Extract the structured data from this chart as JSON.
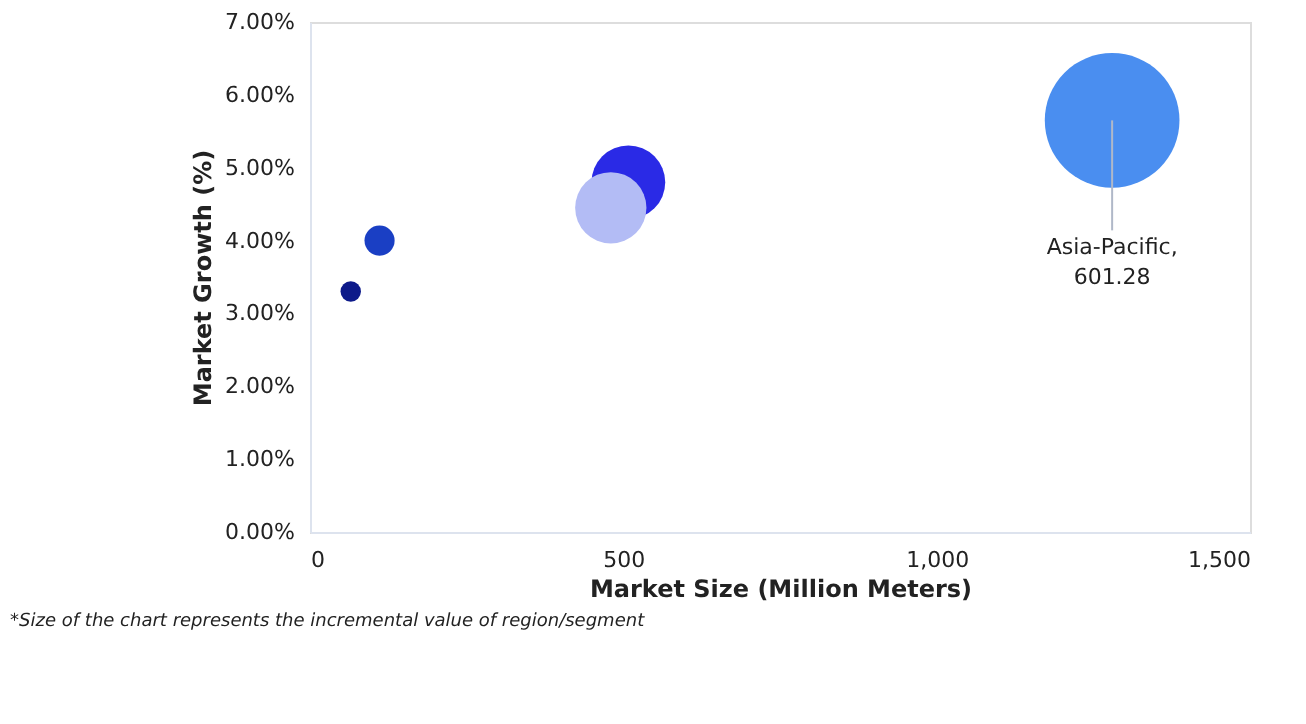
{
  "chart_data": {
    "type": "bubble",
    "xlabel": "Market Size (Million Meters)",
    "ylabel": "Market Growth (%)",
    "x": [
      65,
      111,
      508,
      480,
      1280
    ],
    "values": [
      3.3,
      4.0,
      4.8,
      4.45,
      5.65
    ],
    "sizes": [
      0.023,
      0.05,
      0.3,
      0.28,
      1
    ],
    "colors": [
      "#0d1a8a",
      "#1a3fc4",
      "#2a2ae6",
      "#b3bcf5",
      "#4a8ef0"
    ],
    "xlim": [
      0,
      1500
    ],
    "ylim": [
      0,
      7
    ],
    "xticks": [
      0,
      500,
      {
        "value": 1000,
        "label": "1,000"
      },
      {
        "value": 1500,
        "label": "1,500"
      }
    ],
    "yticks": [
      {
        "value": 0,
        "label": "0.00%"
      },
      {
        "value": 1,
        "label": "1.00%"
      },
      {
        "value": 2,
        "label": "2.00%"
      },
      {
        "value": 3,
        "label": "3.00%"
      },
      {
        "value": 4,
        "label": "4.00%"
      },
      {
        "value": 5,
        "label": "5.00%"
      },
      {
        "value": 6,
        "label": "6.00%"
      },
      {
        "value": 7,
        "label": "7.00%"
      }
    ],
    "grid": false,
    "legend": false,
    "marker": "circle",
    "annotations": [
      {
        "text": "Asia-Pacific, 601.28",
        "x": 1280,
        "y": 5.65
      },
      "*Size of the chart represents the incremental value of region/segment"
    ]
  }
}
